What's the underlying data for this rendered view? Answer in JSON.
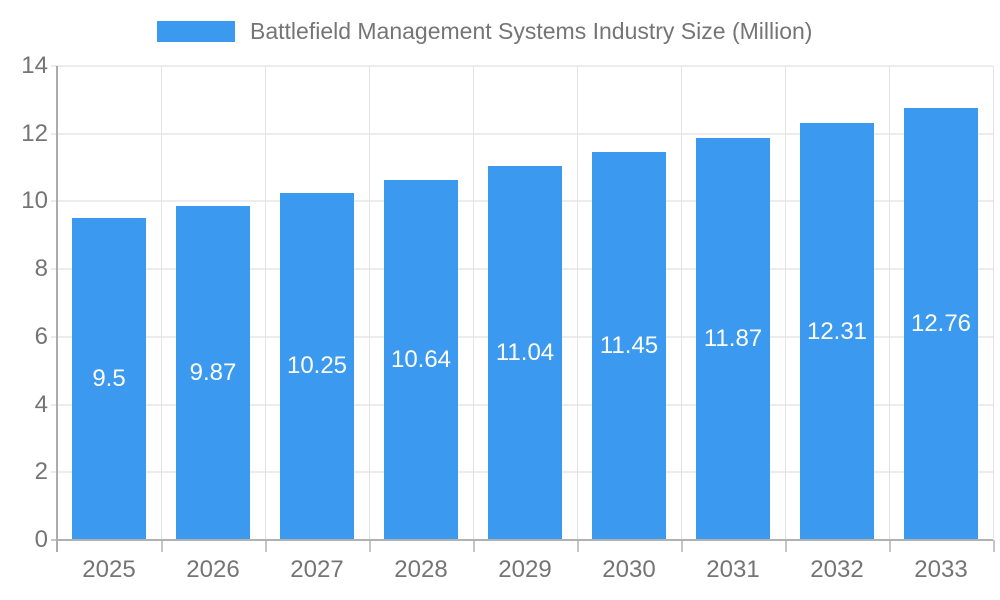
{
  "chart_data": {
    "type": "bar",
    "title": "Battlefield Management Systems Industry Size (Million)",
    "categories": [
      "2025",
      "2026",
      "2027",
      "2028",
      "2029",
      "2030",
      "2031",
      "2032",
      "2033"
    ],
    "series": [
      {
        "name": "Battlefield Management Systems Industry Size (Million)",
        "values": [
          9.5,
          9.87,
          10.25,
          10.64,
          11.04,
          11.45,
          11.87,
          12.31,
          12.76
        ]
      }
    ],
    "bar_labels": [
      "9.5",
      "9.87",
      "10.25",
      "10.64",
      "11.04",
      "11.45",
      "11.87",
      "12.31",
      "12.76"
    ],
    "xlabel": "",
    "ylabel": "",
    "ylim": [
      0,
      14
    ],
    "y_tick_labels": [
      "0",
      "2",
      "4",
      "6",
      "8",
      "10",
      "12",
      "14"
    ],
    "grid": true,
    "legend_position": "top",
    "colors": {
      "bar": "#3B99EF",
      "bar_label_text": "#ffffff",
      "axis_text": "#757575",
      "title_text": "#757575",
      "axis_line": "#ababab",
      "x_axis_line": "#b0b0b0",
      "gridline": "#ececec",
      "vertical_gridline": "#e3e3e3",
      "tick": "#c6c6c6",
      "background": "#ffffff"
    }
  }
}
